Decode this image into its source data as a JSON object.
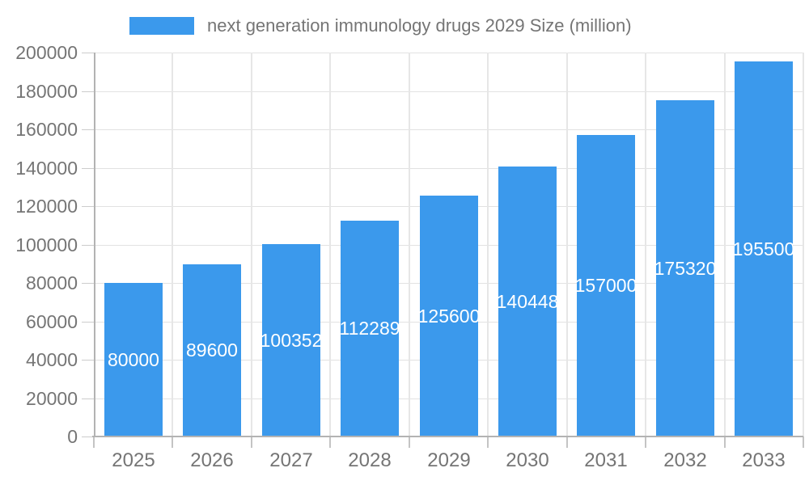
{
  "chart_data": {
    "type": "bar",
    "title": "",
    "legend": {
      "position": "top",
      "label": "next generation immunology drugs 2029 Size (million)"
    },
    "categories": [
      "2025",
      "2026",
      "2027",
      "2028",
      "2029",
      "2030",
      "2031",
      "2032",
      "2033"
    ],
    "series": [
      {
        "name": "next generation immunology drugs 2029 Size (million)",
        "values": [
          80000,
          89600,
          100352,
          112289,
          125600,
          140448,
          157000,
          175320,
          195500
        ]
      }
    ],
    "bar_labels": [
      "80000",
      "89600",
      "100352",
      "112289",
      "125600",
      "140448",
      "157000",
      "175320",
      "195500"
    ],
    "xlabel": "",
    "ylabel": "",
    "ylim": [
      0,
      200000
    ],
    "ytick_step": 20000,
    "ytick_labels": [
      "0",
      "20000",
      "40000",
      "60000",
      "80000",
      "100000",
      "120000",
      "140000",
      "160000",
      "180000",
      "200000"
    ],
    "grid": true,
    "colors": {
      "bar": "#3b99ec",
      "grid_h": "#e2e2e2",
      "grid_v": "#e6e6e6",
      "axis": "#b3b3b3",
      "text": "#757575",
      "bar_label": "#ffffff",
      "background": "#ffffff"
    }
  }
}
